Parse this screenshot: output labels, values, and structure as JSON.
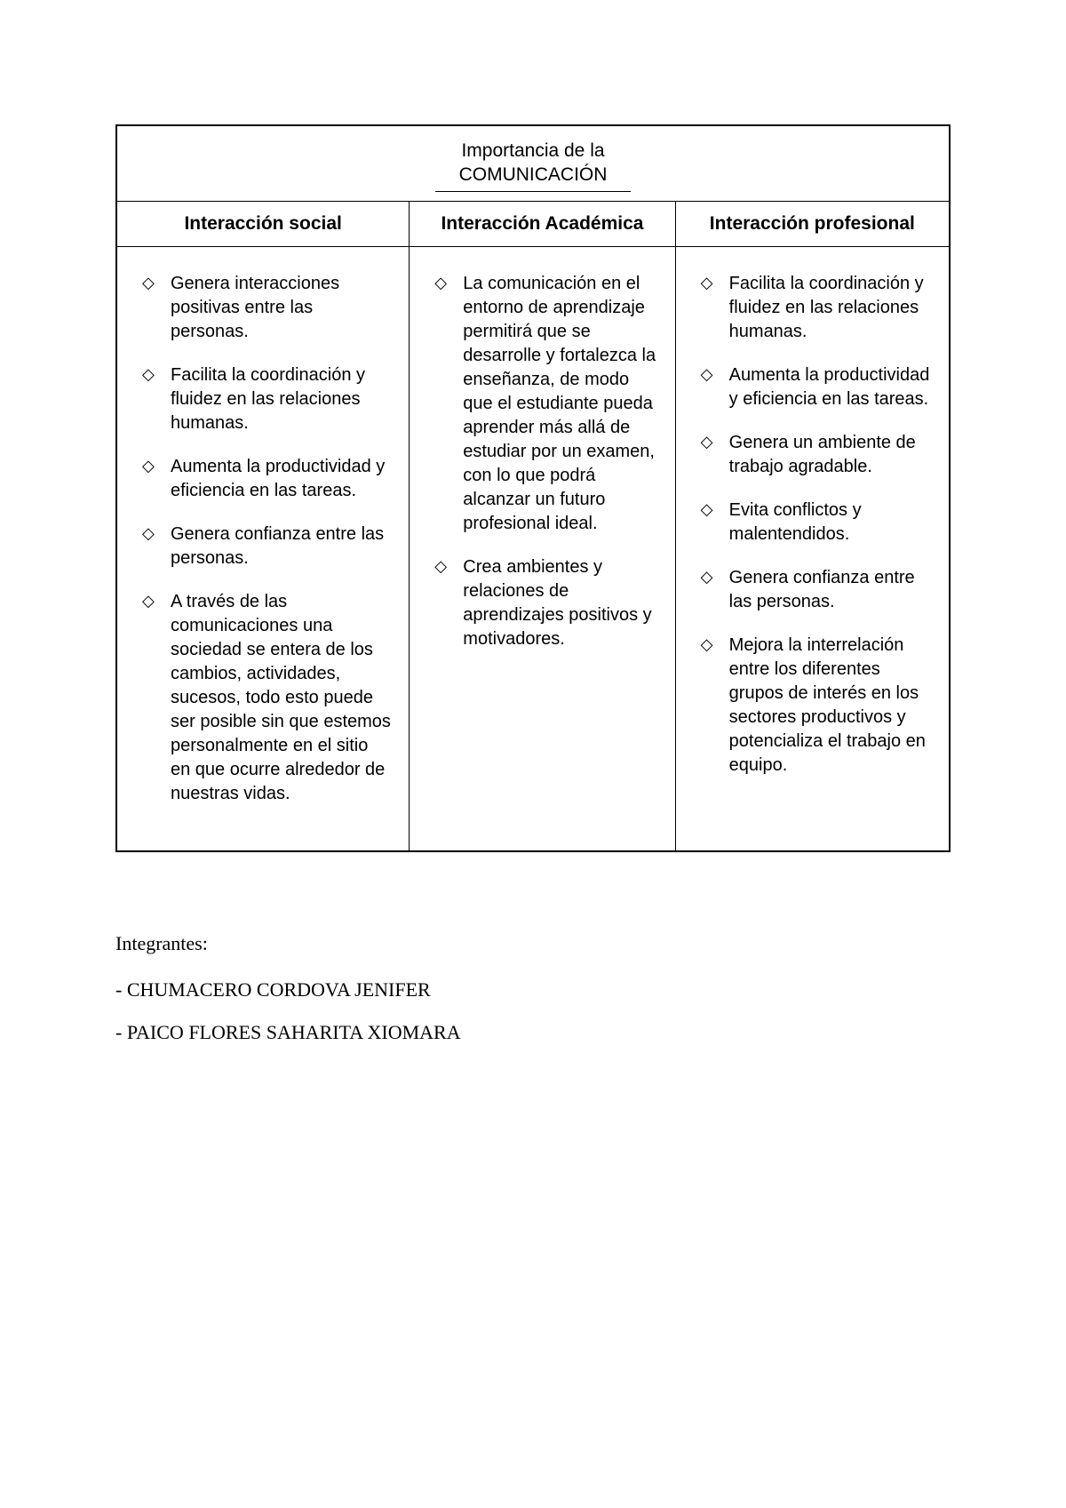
{
  "title": {
    "line1": "Importancia de la",
    "line2": "COMUNICACIÓN"
  },
  "columns": [
    {
      "header": "Interacción social"
    },
    {
      "header": "Interacción Académica"
    },
    {
      "header": "Interacción profesional"
    }
  ],
  "col1_items": [
    "Genera interacciones positivas entre las personas.",
    "Facilita la coordinación y fluidez en las relaciones humanas.",
    "Aumenta la productividad y eficiencia en las tareas.",
    "Genera confianza entre las personas.",
    "A través de las comunicaciones una sociedad se entera de los cambios, actividades, sucesos, todo esto puede ser posible sin que estemos personalmente en el sitio en que ocurre alrededor de nuestras vidas."
  ],
  "col2_items": [
    "La comunicación en el entorno de aprendizaje permitirá que se desarrolle y fortalezca la enseñanza, de modo que el estudiante pueda aprender más allá de estudiar por un examen, con lo que podrá alcanzar un futuro profesional ideal.",
    "Crea ambientes y relaciones de aprendizajes positivos y motivadores."
  ],
  "col3_items": [
    "Facilita la coordinación y fluidez en las relaciones humanas.",
    "Aumenta la productividad y eficiencia en las tareas.",
    "Genera un ambiente de trabajo agradable.",
    "Evita conflictos y malentendidos.",
    "Genera confianza entre las personas.",
    "Mejora la interrelación entre los diferentes grupos de interés en los sectores productivos y potencializa el trabajo en equipo."
  ],
  "integrantes": {
    "label": "Integrantes:",
    "members": [
      "- CHUMACERO CORDOVA JENIFER",
      "- PAICO FLORES SAHARITA XIOMARA"
    ]
  }
}
